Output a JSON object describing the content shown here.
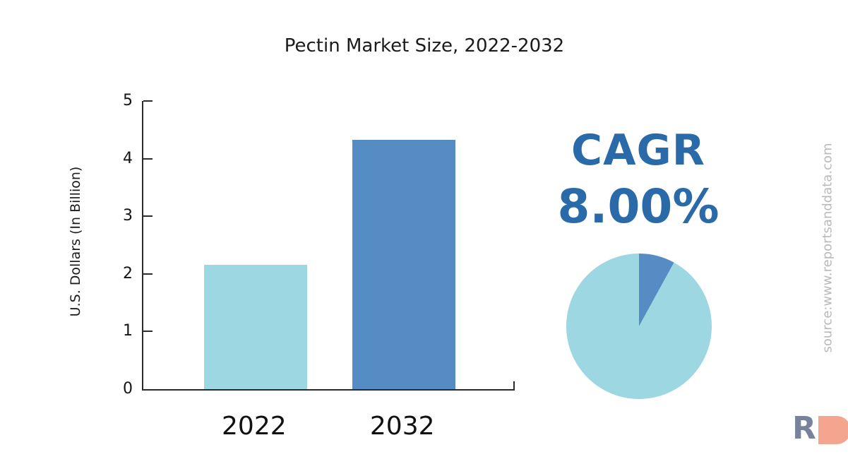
{
  "title": "Pectin Market Size, 2022-2032",
  "cagr": {
    "label": "CAGR",
    "value": "8.00%"
  },
  "source": "source:www.reportsanddata.com",
  "logo": {
    "letter": "R"
  },
  "colors": {
    "light_blue": "#9dd7e2",
    "steel_blue": "#568cc4",
    "cagr_blue": "#2a6aa8",
    "axis": "#2b2b2b",
    "source_gray": "#b9b9b9",
    "logo_r": "#78829a",
    "logo_d": "#f4a58f"
  },
  "chart_data": [
    {
      "type": "bar",
      "title": "Pectin Market Size, 2022-2032",
      "categories": [
        "2022",
        "2032"
      ],
      "values": [
        2.16,
        4.32
      ],
      "xlabel": "",
      "ylabel": "U.S. Dollars (In Billion)",
      "ylim": [
        0,
        5
      ],
      "yticks": [
        0,
        1,
        2,
        3,
        4,
        5
      ],
      "bar_colors": [
        "#9dd7e2",
        "#568cc4"
      ],
      "grid": false,
      "legend_position": "none"
    },
    {
      "type": "pie",
      "values": [
        8,
        92
      ],
      "colors": [
        "#568cc4",
        "#9dd7e2"
      ],
      "start_angle": "12-oclock",
      "direction": "clockwise",
      "annotation": "CAGR 8.00%"
    }
  ]
}
